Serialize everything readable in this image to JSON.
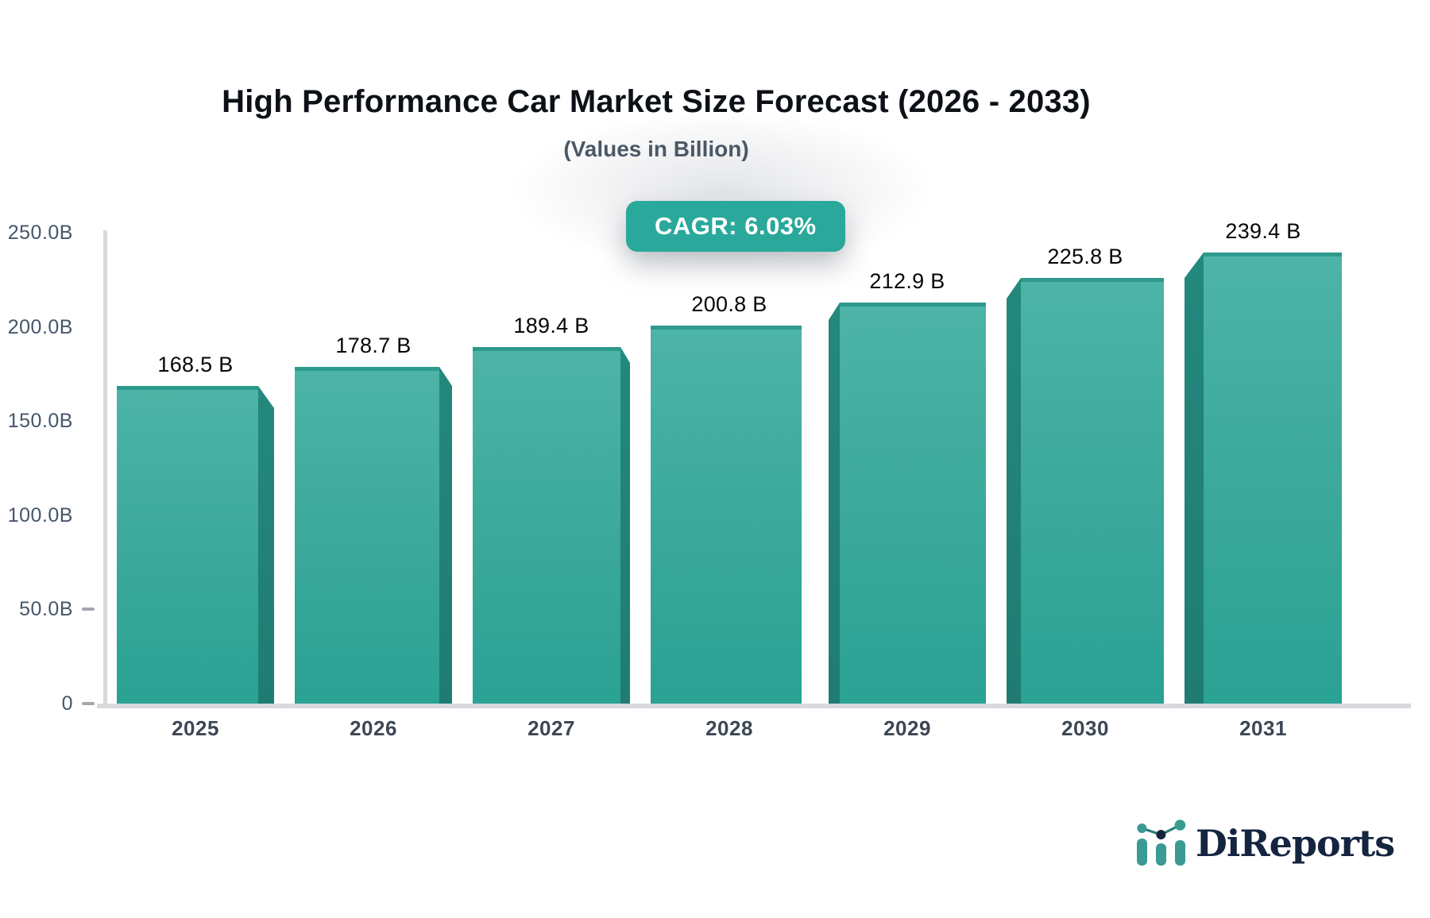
{
  "header": {
    "title": "High Performance Car Market Size Forecast (2026 - 2033)",
    "subtitle": "(Values in Billion)",
    "cagr_badge": "CAGR: 6.03%"
  },
  "logo": {
    "name": "DiReports",
    "icon": "bar-line-chart-icon"
  },
  "colors": {
    "accent_teal": "#2aa89b",
    "bar_face_top": "#4db4a7",
    "bar_face_bottom": "#2aa294",
    "bar_cap": "#2e9a8e",
    "bar_side": "#207c72",
    "axis_gray": "#d7d9dc",
    "logo_navy": "#152540",
    "logo_teal": "#3a9b93"
  },
  "chart_data": {
    "type": "bar",
    "title": "High Performance Car Market Size Forecast (2026 - 2033)",
    "subtitle": "(Values in Billion)",
    "annotation": "CAGR: 6.03%",
    "categories": [
      "2025",
      "2026",
      "2027",
      "2028",
      "2029",
      "2030",
      "2031"
    ],
    "values": [
      168.5,
      178.7,
      189.4,
      200.8,
      212.9,
      225.8,
      239.4
    ],
    "value_labels": [
      "168.5 B",
      "178.7 B",
      "189.4 B",
      "200.8 B",
      "212.9 B",
      "225.8 B",
      "239.4 B"
    ],
    "ylabel": "",
    "xlabel": "",
    "ylim": [
      0,
      250
    ],
    "y_ticks": [
      {
        "label": "250.0B",
        "value": 250
      },
      {
        "label": "200.0B",
        "value": 200
      },
      {
        "label": "150.0B",
        "value": 150
      },
      {
        "label": "100.0B",
        "value": 100
      },
      {
        "label": "50.0B",
        "value": 50
      },
      {
        "label": "0",
        "value": 0
      }
    ],
    "tick_marks_at": [
      50,
      0
    ],
    "grid": false,
    "legend": false,
    "bar_3d_sides": [
      "right",
      "right",
      "right",
      "none",
      "left",
      "left",
      "left"
    ],
    "bar_3d_side_widths": [
      20,
      16,
      12,
      0,
      14,
      18,
      24
    ]
  }
}
